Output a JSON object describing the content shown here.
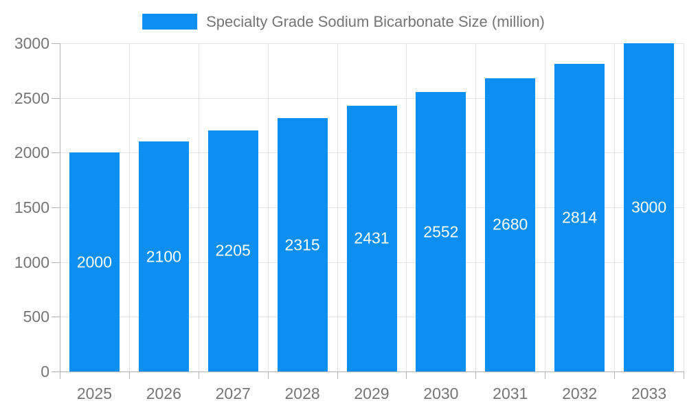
{
  "chart_data": {
    "type": "bar",
    "title": "Specialty Grade Sodium Bicarbonate Size (million)",
    "legend": {
      "position": "top",
      "entries": [
        "Specialty Grade Sodium Bicarbonate Size (million)"
      ]
    },
    "categories": [
      "2025",
      "2026",
      "2027",
      "2028",
      "2029",
      "2030",
      "2031",
      "2032",
      "2033"
    ],
    "values": [
      2000,
      2100,
      2205,
      2315,
      2431,
      2552,
      2680,
      2814,
      3000
    ],
    "value_labels": [
      "2000",
      "2100",
      "2205",
      "2315",
      "2431",
      "2552",
      "2680",
      "2814",
      "3000"
    ],
    "xlabel": "",
    "ylabel": "",
    "ylim": [
      0,
      3000
    ],
    "yticks": [
      0,
      500,
      1000,
      1500,
      2000,
      2500,
      3000
    ],
    "ytick_labels": [
      "0",
      "500",
      "1000",
      "1500",
      "2000",
      "2500",
      "3000"
    ],
    "grid": true,
    "colors": {
      "bar": "#0d8ff2",
      "value_text": "#ffffff",
      "axis_text": "#757575",
      "gridline": "#e3e3e3",
      "axis_line": "#b3b3b3",
      "background": "#ffffff"
    }
  }
}
